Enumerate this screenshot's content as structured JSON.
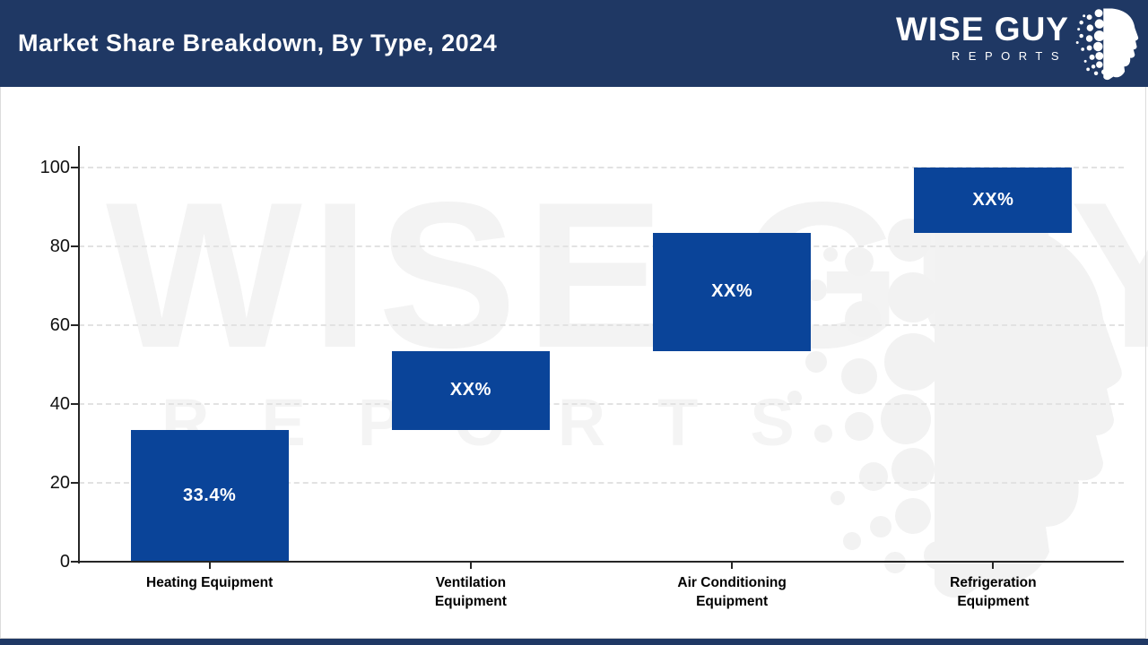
{
  "header": {
    "title": "Market Share Breakdown, By Type, 2024",
    "bg_color": "#1f3864",
    "logo": {
      "line1": "WISE GUY",
      "line2": "REPORTS"
    }
  },
  "watermark": {
    "line1": "WISE GUY",
    "line2": "REPORTS"
  },
  "footer": {
    "bg_color": "#1f3864"
  },
  "chart_data": {
    "type": "bar",
    "subtype": "waterfall",
    "title": "Market Share Breakdown, By Type, 2024",
    "categories": [
      "Heating Equipment",
      "Ventilation Equipment",
      "Air Conditioning Equipment",
      "Refrigeration Equipment"
    ],
    "categories_display": [
      "Heating Equipment",
      "Ventilation\nEquipment",
      "Air Conditioning\nEquipment",
      "Refrigeration\nEquipment"
    ],
    "series": [
      {
        "name": "Market Share (%)",
        "segments": [
          {
            "category": "Heating Equipment",
            "start": 0,
            "end": 33.4,
            "label": "33.4%"
          },
          {
            "category": "Ventilation Equipment",
            "start": 33.4,
            "end": 53.5,
            "label": "XX%"
          },
          {
            "category": "Air Conditioning Equipment",
            "start": 53.5,
            "end": 83.5,
            "label": "XX%"
          },
          {
            "category": "Refrigeration Equipment",
            "start": 83.5,
            "end": 100,
            "label": "XX%"
          }
        ]
      }
    ],
    "ylim": [
      0,
      100
    ],
    "yticks": [
      0,
      20,
      40,
      60,
      80,
      100
    ],
    "xlabel": "",
    "ylabel": "",
    "grid": "horizontal-dashed",
    "legend": "none",
    "bar_color": "#0a4499",
    "bar_label_color": "#ffffff",
    "grid_color": "#e2e2e2",
    "axis_color": "#262626"
  }
}
